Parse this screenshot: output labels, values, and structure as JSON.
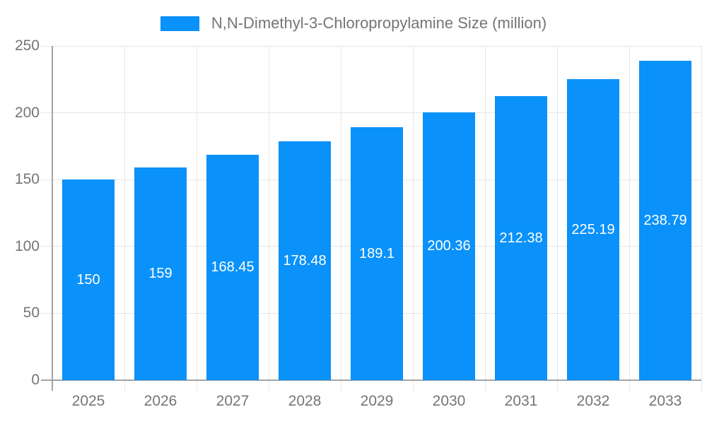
{
  "chart_data": {
    "type": "bar",
    "title": "N,N-Dimethyl-3-Chloropropylamine Size (million)",
    "legend_entries": [
      "N,N-Dimethyl-3-Chloropropylamine Size (million)"
    ],
    "legend_position": "top",
    "categories": [
      "2025",
      "2026",
      "2027",
      "2028",
      "2029",
      "2030",
      "2031",
      "2032",
      "2033"
    ],
    "series": [
      {
        "name": "N,N-Dimethyl-3-Chloropropylamine Size (million)",
        "values": [
          150,
          159,
          168.45,
          178.48,
          189.1,
          200.36,
          212.38,
          225.19,
          238.79
        ]
      }
    ],
    "value_labels": [
      "150",
      "159",
      "168.45",
      "178.48",
      "189.1",
      "200.36",
      "212.38",
      "225.19",
      "238.79"
    ],
    "xlabel": "",
    "ylabel": "",
    "ylim": [
      0,
      250
    ],
    "yticks": [
      0,
      50,
      100,
      150,
      200,
      250
    ],
    "grid": true,
    "colors": {
      "bar": "#0a91fa",
      "axis_text": "#757575",
      "grid_line": "#e6e6e6",
      "axis_line": "#a3a3a3",
      "value_label": "#ffffff",
      "background": "#ffffff"
    }
  }
}
